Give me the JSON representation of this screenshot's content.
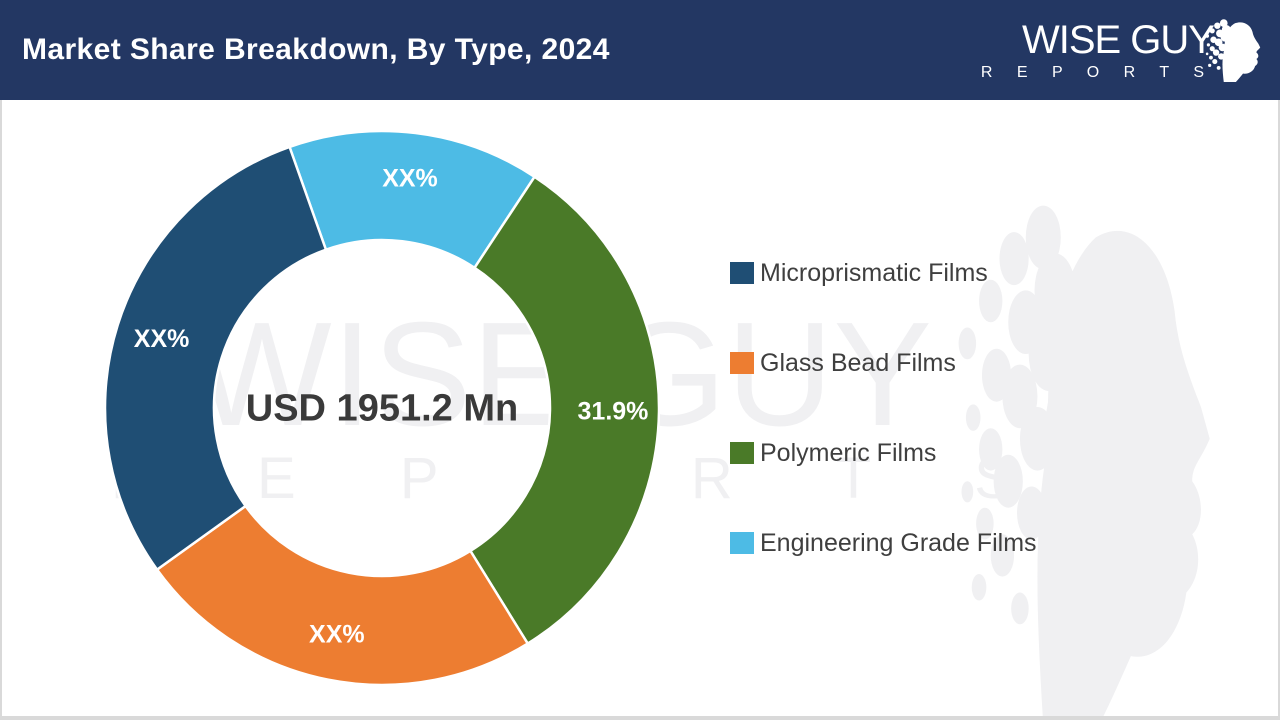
{
  "header": {
    "title": "Market Share Breakdown, By Type, 2024",
    "logo": {
      "name": "WISE GUY",
      "subtitle": "R E P O R T S"
    }
  },
  "watermark": {
    "word1": "WISE GUY",
    "word2": "R E P O R T S"
  },
  "chart_data": {
    "type": "pie",
    "subtype": "donut",
    "title": "Market Share Breakdown, By Type, 2024",
    "center_label": "USD 1951.2 Mn",
    "legend_position": "right",
    "start_angle_deg": -19.5,
    "direction": "clockwise",
    "draw_order": [
      3,
      2,
      1,
      0
    ],
    "segments": [
      {
        "label": "Microprismatic Films",
        "display_value": "XX%",
        "value_pct": 29.5,
        "color": "#1f4e74"
      },
      {
        "label": "Glass Bead Films",
        "display_value": "XX%",
        "value_pct": 23.9,
        "color": "#ed7d31"
      },
      {
        "label": "Polymeric Films",
        "display_value": "31.9%",
        "value_pct": 31.9,
        "color": "#4a7a28"
      },
      {
        "label": "Engineering Grade Films",
        "display_value": "XX%",
        "value_pct": 14.7,
        "color": "#4dbbe5"
      }
    ]
  },
  "colors": {
    "header_bg": "#233763",
    "segment_label": "#ffffff",
    "center_text": "#3a3a3a",
    "legend_text": "#3f3f3f",
    "watermark": "#f0f0f2",
    "border": "#d9d9d9",
    "canvas": "#ffffff"
  }
}
